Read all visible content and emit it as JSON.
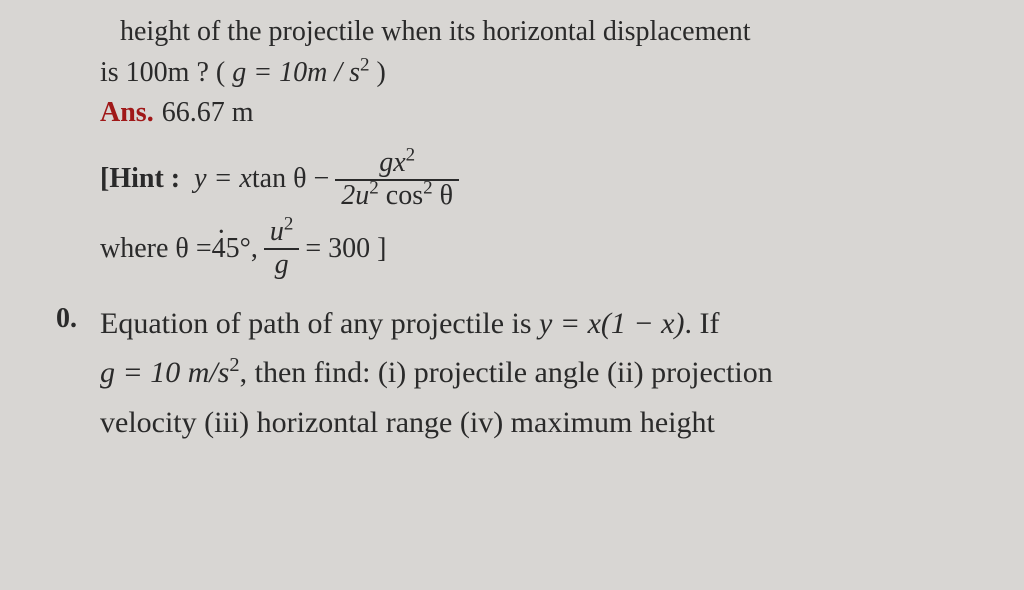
{
  "q1": {
    "line1": "height of the projectile when its horizontal displacement",
    "line2_a": "is 100m ? ( ",
    "line2_eq": "g = 10m / s",
    "line2_b": " )",
    "ans_label": "Ans.",
    "ans_value": "66.67 m",
    "hint_label": "[Hint :",
    "hint_lhs": "y = x ",
    "hint_tan": "tan θ − ",
    "hint_num_a": "gx",
    "hint_den_a": "2u",
    "hint_den_b": " cos",
    "hint_den_c": " θ",
    "where_a": "where θ = ",
    "where_45": "45°",
    "where_sep": ", ",
    "where_num": "u",
    "where_den": "g",
    "where_rhs": " = 300 ]"
  },
  "q0": {
    "num": "0.",
    "l1a": "Equation of path of any projectile is ",
    "eq": "y = x(1 − x)",
    "l1b": ". If",
    "l2a": "g = 10 m/s",
    "l2b": ", then find: (i) projectile angle (ii) projection",
    "l3": "velocity (iii) horizontal range (iv) maximum height"
  }
}
